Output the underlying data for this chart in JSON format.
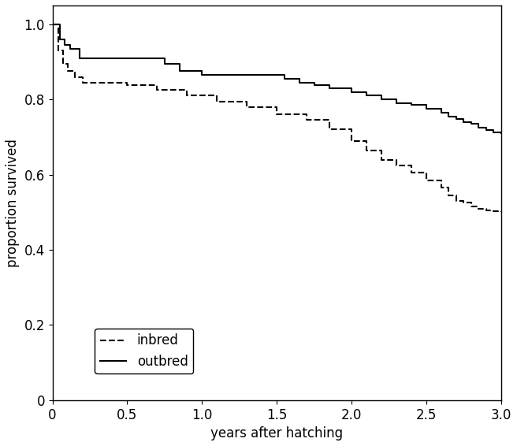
{
  "title": "",
  "xlabel": "years after hatching",
  "ylabel": "proportion survived",
  "xlim": [
    0,
    3.0
  ],
  "ylim": [
    0,
    1.05
  ],
  "yticks": [
    0,
    0.2,
    0.4,
    0.6,
    0.8,
    1.0
  ],
  "xticks": [
    0,
    0.5,
    1.0,
    1.5,
    2.0,
    2.5,
    3.0
  ],
  "background_color": "#ffffff",
  "outbred_x": [
    0,
    0.05,
    0.08,
    0.12,
    0.18,
    0.75,
    0.85,
    1.0,
    1.55,
    1.65,
    1.75,
    1.85,
    2.0,
    2.1,
    2.2,
    2.3,
    2.4,
    2.5,
    2.6,
    2.65,
    2.7,
    2.75,
    2.8,
    2.85,
    2.9,
    2.95,
    3.0
  ],
  "outbred_y": [
    1.0,
    0.96,
    0.945,
    0.935,
    0.91,
    0.895,
    0.875,
    0.865,
    0.855,
    0.845,
    0.838,
    0.83,
    0.82,
    0.81,
    0.8,
    0.79,
    0.785,
    0.775,
    0.765,
    0.755,
    0.748,
    0.74,
    0.735,
    0.725,
    0.718,
    0.712,
    0.71
  ],
  "inbred_x": [
    0,
    0.04,
    0.07,
    0.1,
    0.15,
    0.2,
    0.5,
    0.7,
    0.9,
    1.1,
    1.3,
    1.5,
    1.7,
    1.85,
    2.0,
    2.1,
    2.2,
    2.3,
    2.4,
    2.5,
    2.6,
    2.65,
    2.7,
    2.75,
    2.8,
    2.85,
    2.9,
    2.95,
    3.0
  ],
  "inbred_y": [
    1.0,
    0.93,
    0.895,
    0.875,
    0.86,
    0.845,
    0.838,
    0.825,
    0.81,
    0.795,
    0.78,
    0.76,
    0.745,
    0.72,
    0.69,
    0.665,
    0.64,
    0.625,
    0.605,
    0.585,
    0.565,
    0.545,
    0.53,
    0.525,
    0.515,
    0.51,
    0.505,
    0.502,
    0.5
  ],
  "legend_labels": [
    "inbred",
    "outbred"
  ],
  "line_color": "#000000",
  "font_size": 12
}
